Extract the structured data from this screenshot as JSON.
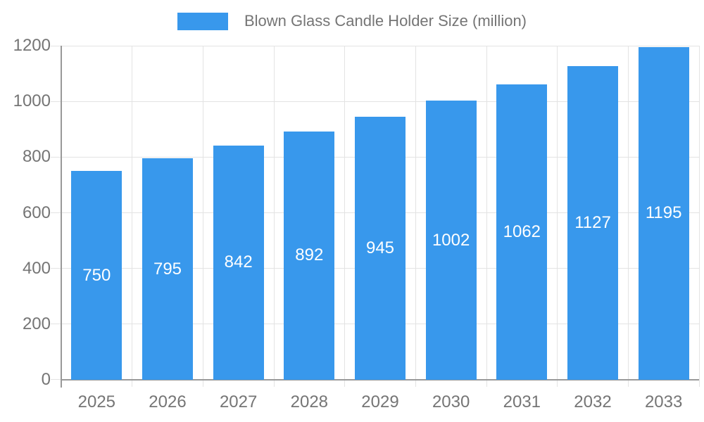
{
  "legend": {
    "label": "Blown Glass Candle Holder Size (million)"
  },
  "chart_data": {
    "type": "bar",
    "title": "Blown Glass Candle Holder Size (million)",
    "categories": [
      "2025",
      "2026",
      "2027",
      "2028",
      "2029",
      "2030",
      "2031",
      "2032",
      "2033"
    ],
    "values": [
      750,
      795,
      842,
      892,
      945,
      1002,
      1062,
      1127,
      1195
    ],
    "series": [
      {
        "name": "Blown Glass Candle Holder Size (million)",
        "values": [
          750,
          795,
          842,
          892,
          945,
          1002,
          1062,
          1127,
          1195
        ]
      }
    ],
    "xlabel": "",
    "ylabel": "",
    "ylim": [
      0,
      1200
    ],
    "yticks": [
      0,
      200,
      400,
      600,
      800,
      1000,
      1200
    ],
    "grid": true,
    "legend_position": "top",
    "data_labels": "inside-center",
    "colors": {
      "bar": "#3898EC",
      "data_label": "#FFFFFF",
      "axis_text": "#757575",
      "gridline": "#E3E3E3",
      "axis_line": "#999999",
      "background": "#FFFFFF"
    }
  }
}
